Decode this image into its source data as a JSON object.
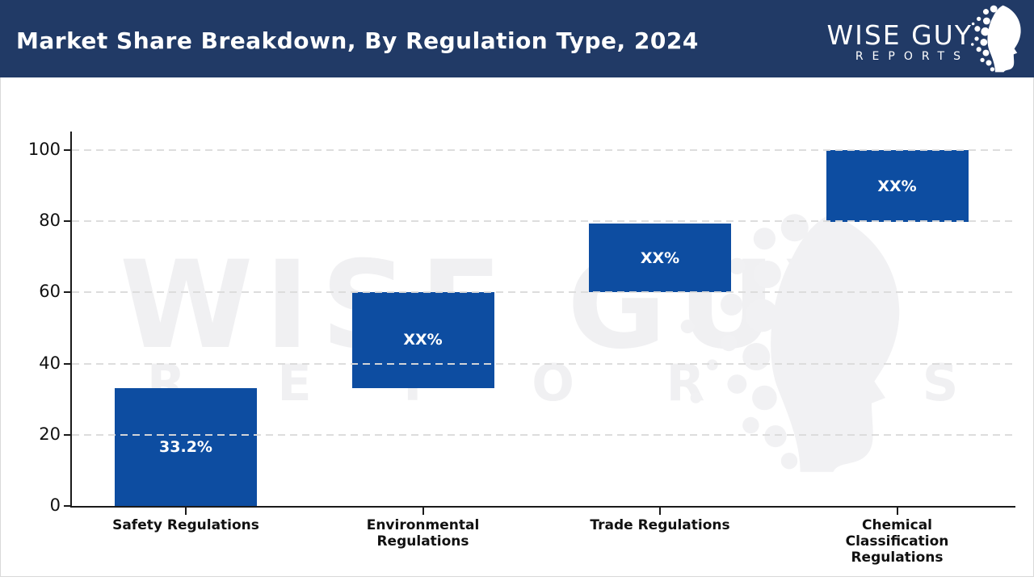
{
  "header": {
    "title": "Market Share Breakdown, By Regulation Type, 2024",
    "background_color": "#213A66",
    "logo": {
      "line1": "WISE GUY",
      "line2": "REPORTS"
    }
  },
  "watermark": {
    "line1": "WISE GUY",
    "line2": "R E P O R T S"
  },
  "chart_data": {
    "type": "bar",
    "subtype": "waterfall",
    "title": "Market Share Breakdown, By Regulation Type, 2024",
    "categories": [
      "Safety Regulations",
      "Environmental\nRegulations",
      "Trade Regulations",
      "Chemical\nClassification\nRegulations"
    ],
    "segments": [
      {
        "category": "Safety Regulations",
        "start": 0,
        "end": 33.2,
        "label": "33.2%"
      },
      {
        "category": "Environmental Regulations",
        "start": 33.2,
        "end": 60,
        "label": "XX%"
      },
      {
        "category": "Trade Regulations",
        "start": 60,
        "end": 79.3,
        "label": "XX%"
      },
      {
        "category": "Chemical Classification Regulations",
        "start": 79.8,
        "end": 100,
        "label": "XX%"
      }
    ],
    "xlabel": "",
    "ylabel": "",
    "ylim": [
      0,
      100
    ],
    "yticks": [
      0,
      20,
      40,
      60,
      80,
      100
    ],
    "grid": "horizontal-dashed",
    "legend": "none",
    "bar_color": "#0D4DA1",
    "bar_label_color": "#FFFFFF",
    "axis_color": "#1a1a1a",
    "gridline_color": "#dbdbdb"
  }
}
